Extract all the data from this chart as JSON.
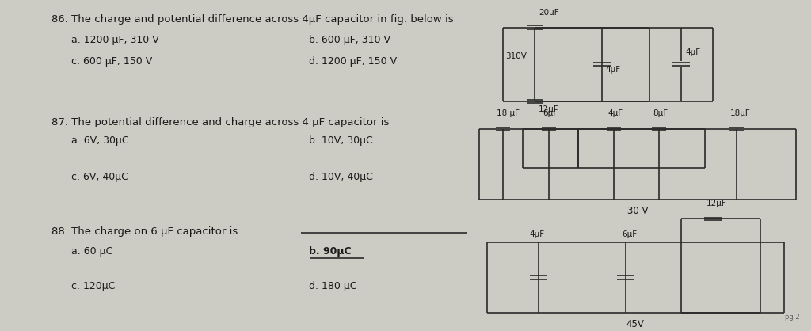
{
  "bg_color": "#ccccc4",
  "text_color": "#1a1a1a",
  "q86_text": "86. The charge and potential difference across 4μF capacitor in fig. below is",
  "q86_a": "a. 1200 μF, 310 V",
  "q86_b": "b. 600 μF, 310 V",
  "q86_c": "c. 600 μF, 150 V",
  "q86_d": "d. 1200 μF, 150 V",
  "q87_text": "87. The potential difference and charge across 4 μF capacitor is",
  "q87_a": "a. 6V, 30μC",
  "q87_b": "b. 10V, 30μC",
  "q87_c": "c. 6V, 40μC",
  "q87_d": "d. 10V, 40μC",
  "q88_text": "88. The charge on 6 μF capacitor is",
  "q88_a": "a. 60 μC",
  "q88_b": "b. 90μC",
  "q88_c": "c. 120μC",
  "q88_d": "d. 180 μC",
  "fs_q": 9.5,
  "fs_o": 9.0,
  "fs_c": 7.5
}
